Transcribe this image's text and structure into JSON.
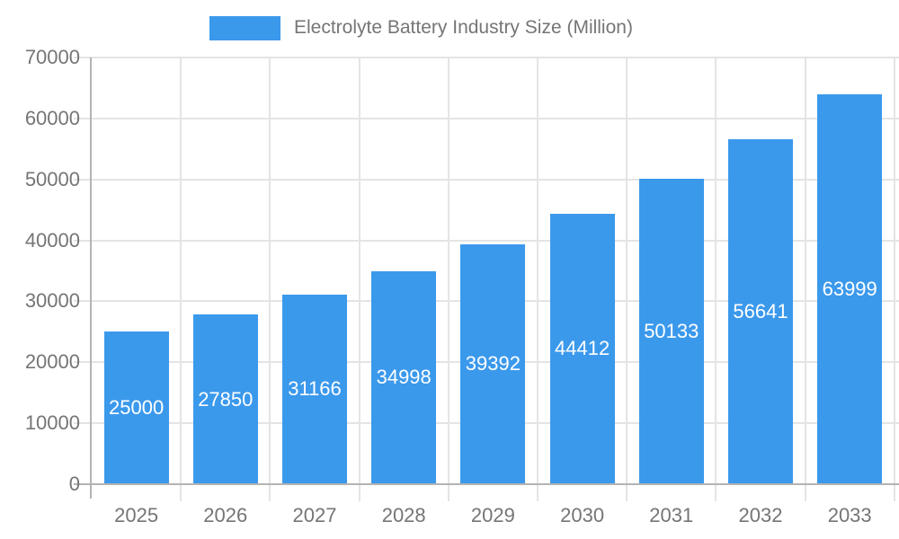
{
  "legend": {
    "label": "Electrolyte Battery Industry Size (Million)"
  },
  "chart_data": {
    "type": "bar",
    "title": "Electrolyte Battery Industry Size (Million)",
    "categories": [
      "2025",
      "2026",
      "2027",
      "2028",
      "2029",
      "2030",
      "2031",
      "2032",
      "2033"
    ],
    "values": [
      25000,
      27850,
      31166,
      34998,
      39392,
      44412,
      50133,
      56641,
      63999
    ],
    "bar_value_labels": [
      "25000",
      "27850",
      "31166",
      "34998",
      "39392",
      "44412",
      "50133",
      "56641",
      "63999"
    ],
    "xlabel": "",
    "ylabel": "",
    "ylim": [
      0,
      70000
    ],
    "ytick_interval": 10000,
    "ytick_labels": [
      "0",
      "10000",
      "20000",
      "30000",
      "40000",
      "50000",
      "60000",
      "70000"
    ],
    "grid": true,
    "legend_position": "top",
    "colors": {
      "bar": "#3b99ec",
      "bar_label_text": "#ffffff",
      "axis_text": "#757575",
      "legend_text": "#757575",
      "gridline": "#e4e4e4",
      "axis_line": "#b3b3b3",
      "background": "#ffffff"
    }
  }
}
